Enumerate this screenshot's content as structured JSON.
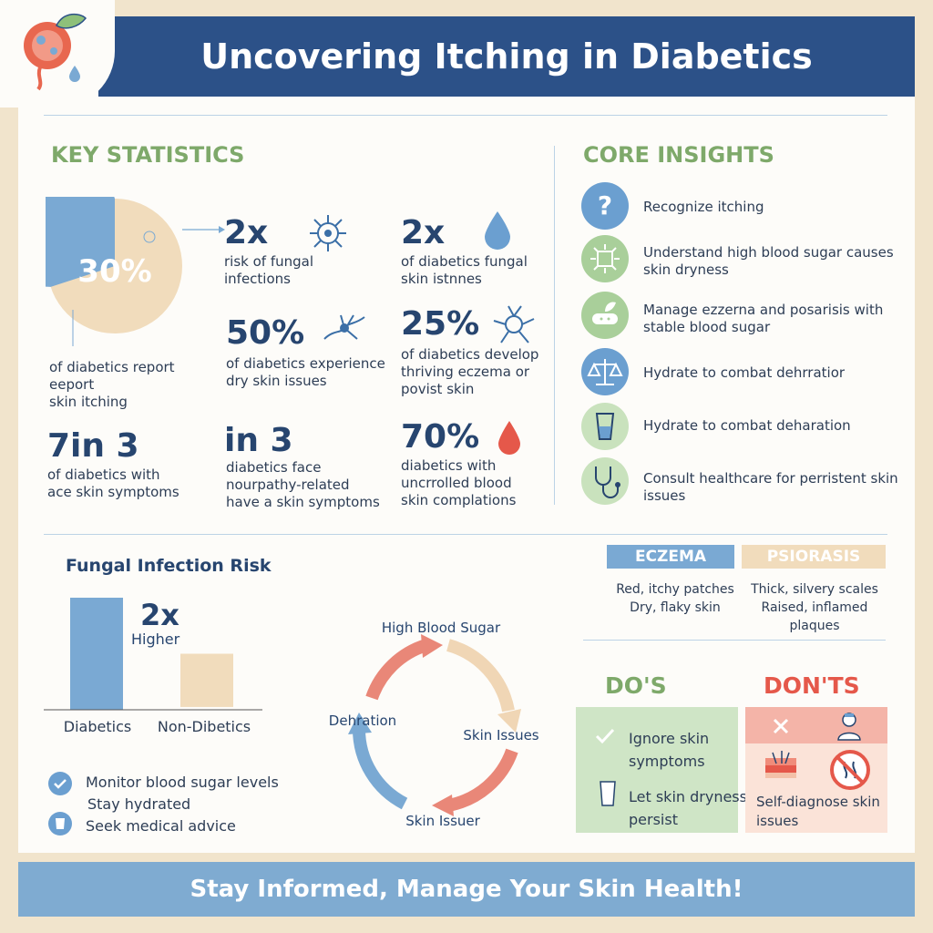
{
  "header": {
    "title": "Uncovering Itching in Diabetics"
  },
  "key_stats": {
    "title": "KEY STATISTICS",
    "pie": {
      "value_label": "30%",
      "fraction": 0.3,
      "caption": "of diabetics report\neeport\nskin itching"
    },
    "items": [
      {
        "value": "2x",
        "caption": "risk of fungal\ninfections",
        "icon": "fungus-icon"
      },
      {
        "value": "2x",
        "caption": "of diabetics fungal\nskin istnnes",
        "icon": "water-drop-icon"
      },
      {
        "value": "50%",
        "caption": "of diabetics experience\ndry skin issues",
        "icon": "nerve-icon"
      },
      {
        "value": "25%",
        "caption": "of diabetics develop\nthriving eczema or\npovist skin",
        "icon": "cell-icon"
      },
      {
        "value": "7in 3",
        "caption": "of diabetics with\nace skin symptoms"
      },
      {
        "value": "in 3",
        "caption": "diabetics face\nnourpathy-related\nhave a skin symptoms"
      },
      {
        "value": "70%",
        "caption": "diabetics with\nuncrrolled blood\nskin complations",
        "icon": "blood-drop-icon"
      }
    ]
  },
  "core_insights": {
    "title": "CORE INSIGHTS",
    "items": [
      {
        "text": "Recognize itching",
        "icon": "question-icon",
        "color": "#6b9fd0"
      },
      {
        "text": "Understand high blood sugar causes skin dryness",
        "icon": "sugar-icon",
        "color": "#a9cf9a"
      },
      {
        "text": "Manage ezzerna and posarisis with stable blood sugar",
        "icon": "bandage-icon",
        "color": "#a9cf9a"
      },
      {
        "text": "Hydrate to combat dehrratior",
        "icon": "scale-icon",
        "color": "#6b9fd0"
      },
      {
        "text": "Hydrate to combat deharation",
        "icon": "glass-icon",
        "color": "#c9e2bd"
      },
      {
        "text": "Consult healthcare for perristent skin issues",
        "icon": "stethoscope-icon",
        "color": "#c9e2bd"
      }
    ]
  },
  "fungal_chart": {
    "title": "Fungal Infection Risk",
    "annotation_value": "2x",
    "annotation_label": "Higher",
    "colors": [
      "#7aa9d3",
      "#f1dcbc"
    ]
  },
  "chart_data": {
    "type": "bar",
    "title": "Fungal Infection Risk",
    "categories": [
      "Diabetics",
      "Non-Dibetics"
    ],
    "values": [
      2,
      1
    ],
    "xlabel": "",
    "ylabel": ""
  },
  "tips": [
    {
      "text": "Monitor blood sugar levels",
      "icon": "check-circle-icon"
    },
    {
      "text": "Stay hydrated",
      "icon": ""
    },
    {
      "text": "Seek medical advice",
      "icon": "cup-icon"
    }
  ],
  "cycle": {
    "labels": [
      "High Blood Sugar",
      "Skin Issues",
      "Skin Issuer",
      "Dehration"
    ]
  },
  "conditions": {
    "eczema": {
      "label": "ECZEMA",
      "lines": [
        "Red, itchy patches",
        "Dry, flaky skin"
      ],
      "color": "#7aa9d3"
    },
    "psoriasis": {
      "label": "PSIORASIS",
      "lines": [
        "Thick, silvery scales",
        "Raised, inflamed plaques"
      ],
      "color": "#f1dcbc"
    }
  },
  "dos": {
    "title": "DO'S",
    "items": [
      {
        "text": "Ignore skin\nsymptoms",
        "icon": "check-icon"
      },
      {
        "text": "Let skin dryness\npersist",
        "icon": "glass-icon"
      }
    ]
  },
  "donts": {
    "title": "DON'TS",
    "items": [
      {
        "text": "Self-diagnose skin\nissues"
      }
    ],
    "icons": [
      "cross-icon",
      "doctor-icon",
      "skin-icon",
      "no-scratch-icon"
    ]
  },
  "footer": {
    "text": "Stay Informed, Manage Your Skin Health!"
  }
}
